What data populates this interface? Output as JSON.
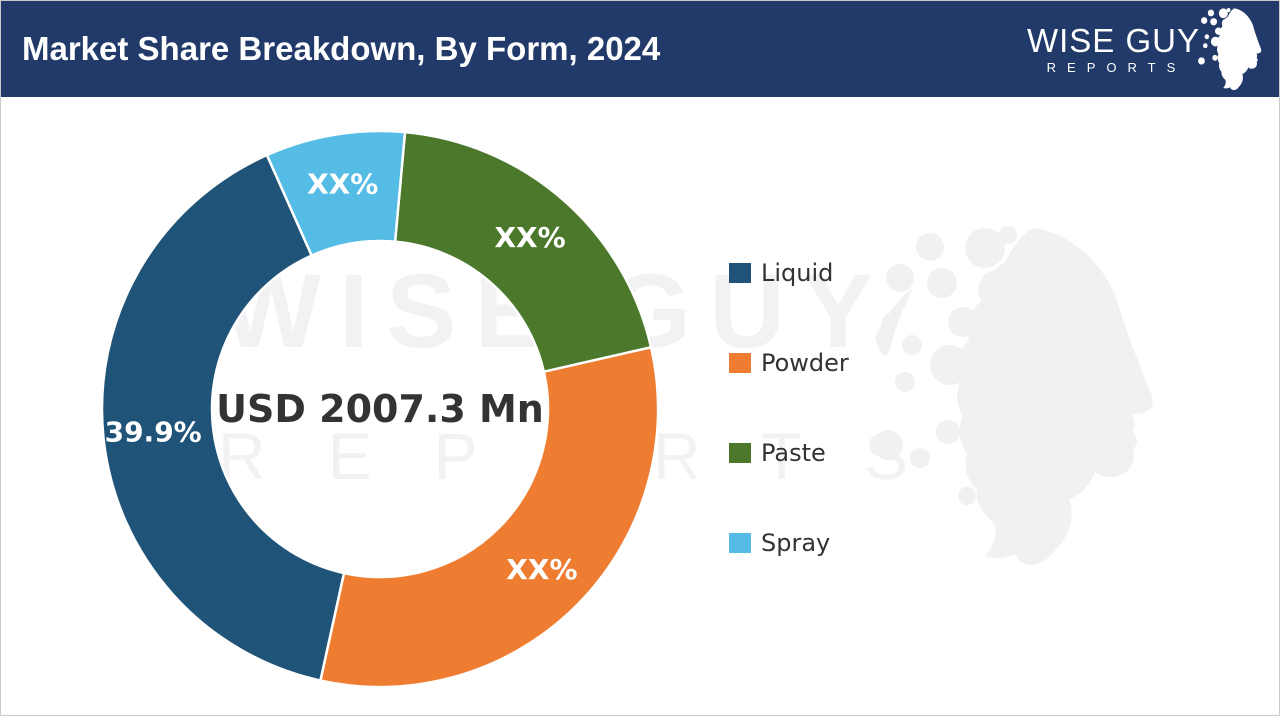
{
  "header": {
    "title": "Market Share Breakdown, By Form, 2024",
    "logo": {
      "name": "WISE GUY",
      "subtitle": "REPORTS"
    }
  },
  "watermark": {
    "line1": "WISE GUY",
    "line2": "REPORTS"
  },
  "chart_data": {
    "type": "pie",
    "subtype": "donut",
    "title": "Market Share Breakdown, By Form, 2024",
    "center_label": "USD 2007.3 Mn",
    "categories": [
      "Liquid",
      "Powder",
      "Paste",
      "Spray"
    ],
    "values_pct_estimated": [
      39.9,
      32.0,
      20.0,
      8.1
    ],
    "slice_labels_shown": [
      "39.9%",
      "XX%",
      "XX%",
      "XX%"
    ],
    "colors": [
      "#1f5377",
      "#ee7d31",
      "#4c782b",
      "#54bce5"
    ],
    "start_angle_deg": 114,
    "direction": "counterclockwise",
    "legend_position": "right",
    "slice_label_color": "#ffffff"
  },
  "legend": {
    "items": [
      {
        "label": "Liquid",
        "color": "#1f5377"
      },
      {
        "label": "Powder",
        "color": "#ee7d31"
      },
      {
        "label": "Paste",
        "color": "#4c782b"
      },
      {
        "label": "Spray",
        "color": "#54bce5"
      }
    ]
  }
}
